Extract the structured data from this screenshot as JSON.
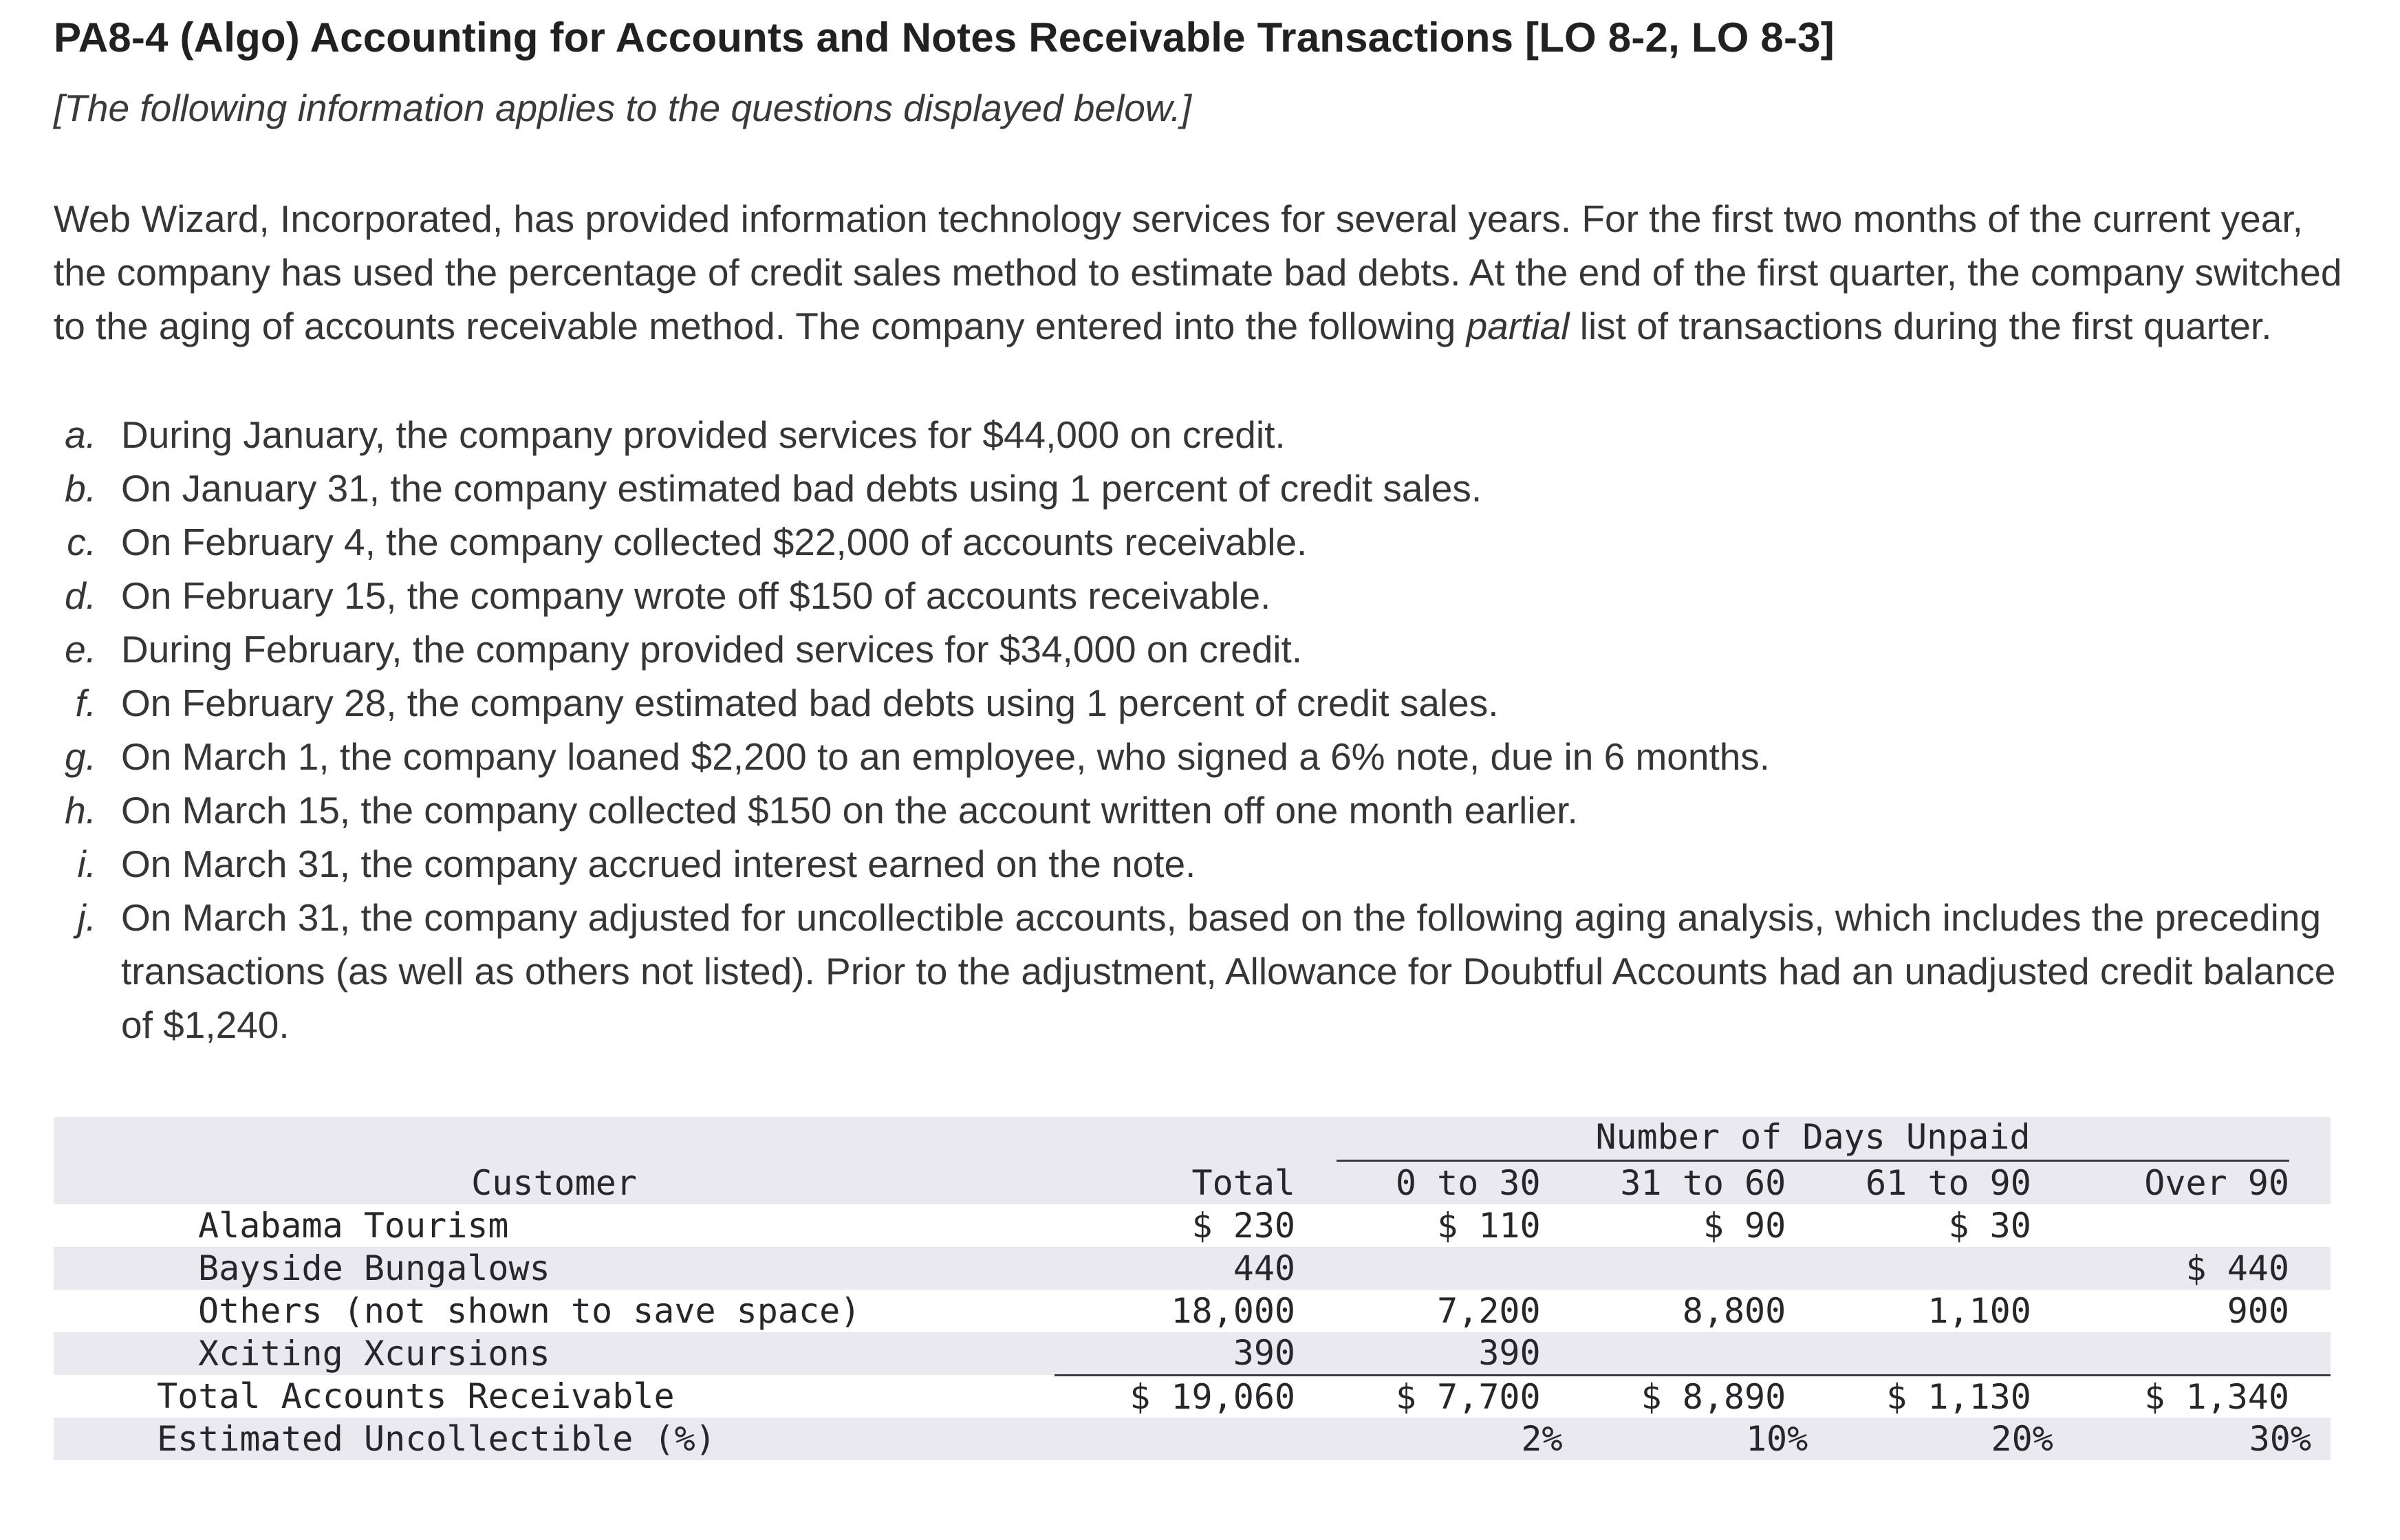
{
  "title": "PA8-4 (Algo) Accounting for Accounts and Notes Receivable Transactions [LO 8-2, LO 8-3]",
  "note": "[The following information applies to the questions displayed below.]",
  "intro": {
    "part1": "Web Wizard, Incorporated, has provided information technology services for several years. For the first two months of the current year, the company has used the percentage of credit sales method to estimate bad debts. At the end of the first quarter, the company switched to the aging of accounts receivable method. The company entered into the following ",
    "italic_word": "partial",
    "part2": " list of transactions during the first quarter."
  },
  "transactions": [
    {
      "letter": "a.",
      "text": "During January, the company provided services for $44,000 on credit."
    },
    {
      "letter": "b.",
      "text": "On January 31, the company estimated bad debts using 1 percent of credit sales."
    },
    {
      "letter": "c.",
      "text": "On February 4, the company collected $22,000 of accounts receivable."
    },
    {
      "letter": "d.",
      "text": "On February 15, the company wrote off $150 of accounts receivable."
    },
    {
      "letter": "e.",
      "text": "During February, the company provided services for $34,000 on credit."
    },
    {
      "letter": "f.",
      "text": "On February 28, the company estimated bad debts using 1 percent of credit sales."
    },
    {
      "letter": "g.",
      "text": "On March 1, the company loaned $2,200 to an employee, who signed a 6% note, due in 6 months."
    },
    {
      "letter": "h.",
      "text": "On March 15, the company collected $150 on the account written off one month earlier."
    },
    {
      "letter": "i.",
      "text": "On March 31, the company accrued interest earned on the note."
    },
    {
      "letter": "j.",
      "text": "On March 31, the company adjusted for uncollectible accounts, based on the following aging analysis, which includes the preceding transactions (as well as others not listed). Prior to the adjustment, Allowance for Doubtful Accounts had an unadjusted credit balance of $1,240."
    }
  ],
  "aging_table": {
    "group_header": "Number of Days Unpaid",
    "col_customer": "Customer",
    "col_total": "Total",
    "col_0_30": "0 to 30",
    "col_31_60": "31 to 60",
    "col_61_90": "61 to 90",
    "col_over_90": "Over 90",
    "rows": [
      {
        "customer": "Alabama Tourism",
        "total": "$ 230",
        "c1": "$ 110",
        "c2": "$ 90",
        "c3": "$ 30",
        "c4": ""
      },
      {
        "customer": "Bayside Bungalows",
        "total": "440",
        "c1": "",
        "c2": "",
        "c3": "",
        "c4": "$ 440"
      },
      {
        "customer": "Others (not shown to save space)",
        "total": "18,000",
        "c1": "7,200",
        "c2": "8,800",
        "c3": "1,100",
        "c4": "900"
      },
      {
        "customer": "Xciting Xcursions",
        "total": "390",
        "c1": "390",
        "c2": "",
        "c3": "",
        "c4": ""
      }
    ],
    "total_row": {
      "label": "Total Accounts Receivable",
      "total": "$ 19,060",
      "c1": "$ 7,700",
      "c2": "$ 8,890",
      "c3": "$ 1,130",
      "c4": "$ 1,340"
    },
    "pct_row": {
      "label": "Estimated Uncollectible (%)",
      "total": "",
      "c1": "2%",
      "c2": "10%",
      "c3": "20%",
      "c4": "30%"
    }
  }
}
